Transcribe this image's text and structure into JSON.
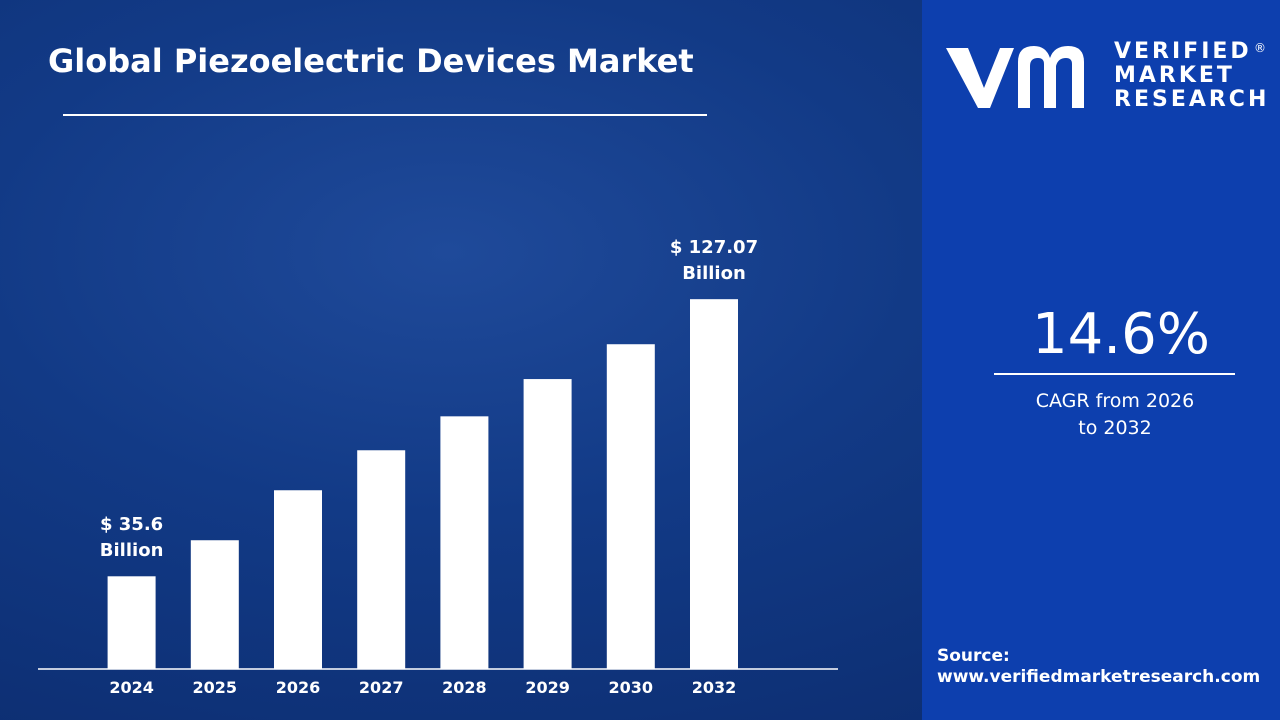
{
  "chart_data": {
    "type": "bar",
    "title": "Global Piezoelectric Devices Market",
    "categories": [
      "2024",
      "2025",
      "2026",
      "2027",
      "2028",
      "2029",
      "2030",
      "2032"
    ],
    "values": [
      35.6,
      47.5,
      64.0,
      77.2,
      88.4,
      100.7,
      112.2,
      127.07
    ],
    "value_labels": [
      "$ 35.6 Billion",
      null,
      null,
      null,
      null,
      null,
      null,
      "$ 127.07 Billion"
    ],
    "color": "#ffffff",
    "ylim": [
      5,
      140
    ]
  },
  "panel": {
    "logo": [
      "VERIFIED",
      "MARKET",
      "RESEARCH"
    ],
    "cagr_value": "14.6%",
    "cagr_label": "CAGR from 2026 to 2032",
    "source_label": "Source:",
    "source_url": "www.verifiedmarketresearch.com"
  }
}
